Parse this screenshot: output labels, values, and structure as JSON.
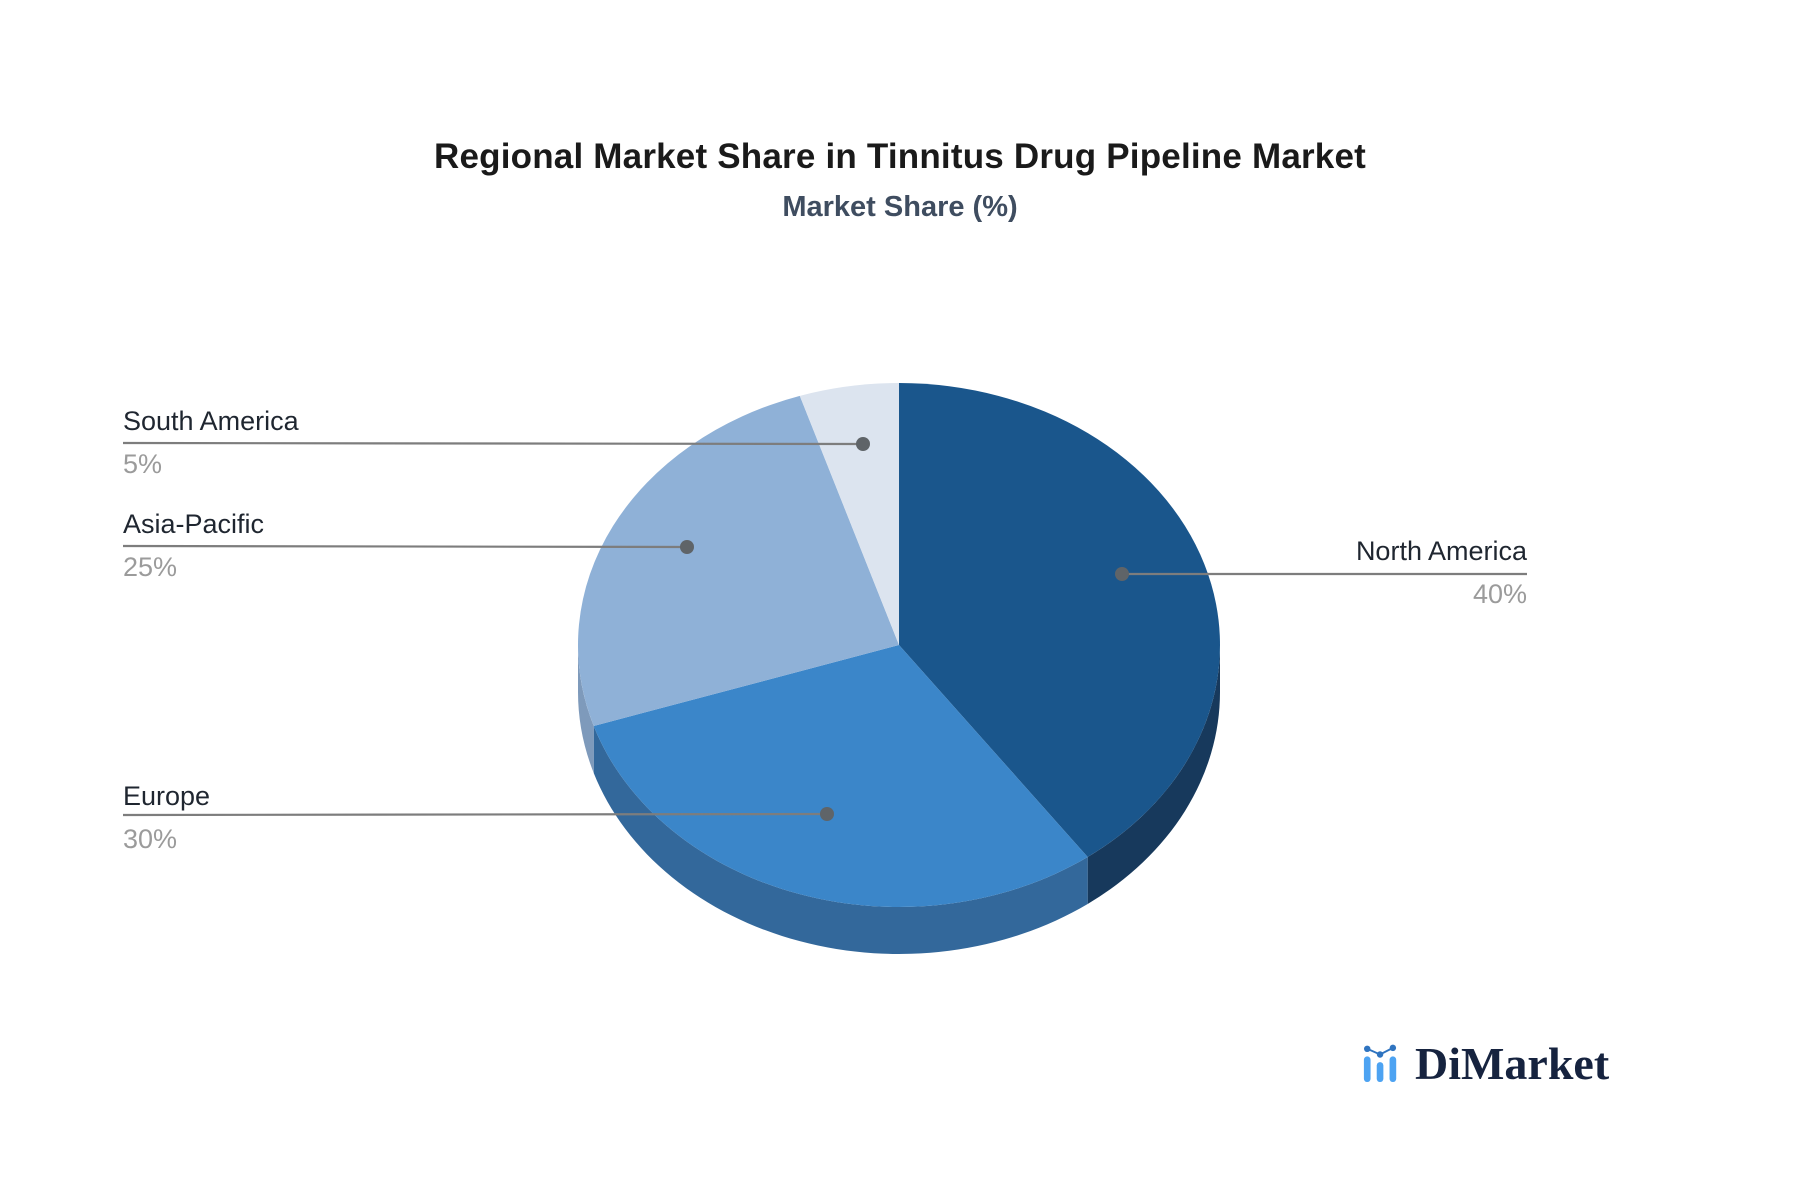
{
  "chart_data": {
    "type": "pie",
    "effect": "3d",
    "title": "Regional Market Share in Tinnitus Drug Pipeline Market",
    "subtitle": "Market Share (%)",
    "unit": "%",
    "direction": "clockwise",
    "start": "top",
    "legend_position": "callout-labels",
    "slices": [
      {
        "label": "North America",
        "value": 40,
        "pct_label": "40%",
        "color": "#1A568C",
        "side_color": "#17395C"
      },
      {
        "label": "Europe",
        "value": 30,
        "pct_label": "30%",
        "color": "#3B86C9",
        "side_color": "#33689B"
      },
      {
        "label": "Asia-Pacific",
        "value": 25,
        "pct_label": "25%",
        "color": "#8FB1D7",
        "side_color": "#7E9ABB"
      },
      {
        "label": "South America",
        "value": 5,
        "pct_label": "5%",
        "color": "#DCE4EF",
        "side_color": "#C2CCDC"
      }
    ]
  },
  "colors": {
    "background": "#FFFFFF",
    "title_text": "#1A1A1A",
    "subtitle_text": "#3F4D60",
    "label_text": "#1F2630",
    "percent_text": "#9B9B9B",
    "leader_line": "#7D7D7D",
    "leader_dot": "#5F6468",
    "logo_text": "#16233F",
    "logo_bar": "#4DA3F2",
    "logo_dot": "#2F74C0"
  },
  "logo": {
    "text": "DiMarket",
    "icon": "bar-line-chart-icon"
  }
}
